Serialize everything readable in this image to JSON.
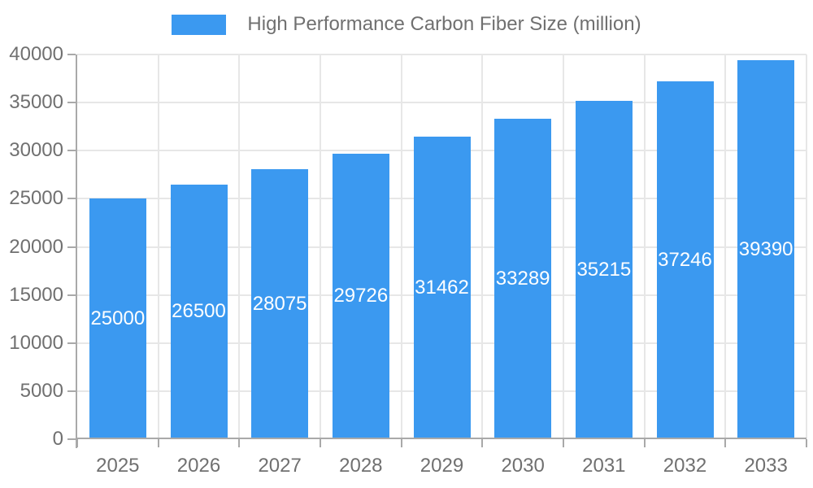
{
  "legend": {
    "label": "High Performance Carbon Fiber Size (million)"
  },
  "colors": {
    "bar": "#3B99F0",
    "axis": "#A9A9A9",
    "grid": "#E7E7E7",
    "text": "#707070",
    "bar_label": "#FFFFFF",
    "background": "#FFFFFF"
  },
  "chart_data": {
    "type": "bar",
    "title": "High Performance Carbon Fiber Size (million)",
    "series": [
      {
        "name": "High Performance Carbon Fiber Size (million)",
        "values": [
          25000,
          26500,
          28075,
          29726,
          31462,
          33289,
          35215,
          37246,
          39390
        ]
      }
    ],
    "categories": [
      "2025",
      "2026",
      "2027",
      "2028",
      "2029",
      "2030",
      "2031",
      "2032",
      "2033"
    ],
    "values": [
      25000,
      26500,
      28075,
      29726,
      31462,
      33289,
      35215,
      37246,
      39390
    ],
    "bar_value_labels": [
      "25000",
      "26500",
      "28075",
      "29726",
      "31462",
      "33289",
      "35215",
      "37246",
      "39390"
    ],
    "xlabel": "",
    "ylabel": "",
    "ylim": [
      0,
      40000
    ],
    "yticks": [
      0,
      5000,
      10000,
      15000,
      20000,
      25000,
      30000,
      35000,
      40000
    ],
    "grid": true,
    "legend_position": "top",
    "value_labels_inside_bars": true
  }
}
